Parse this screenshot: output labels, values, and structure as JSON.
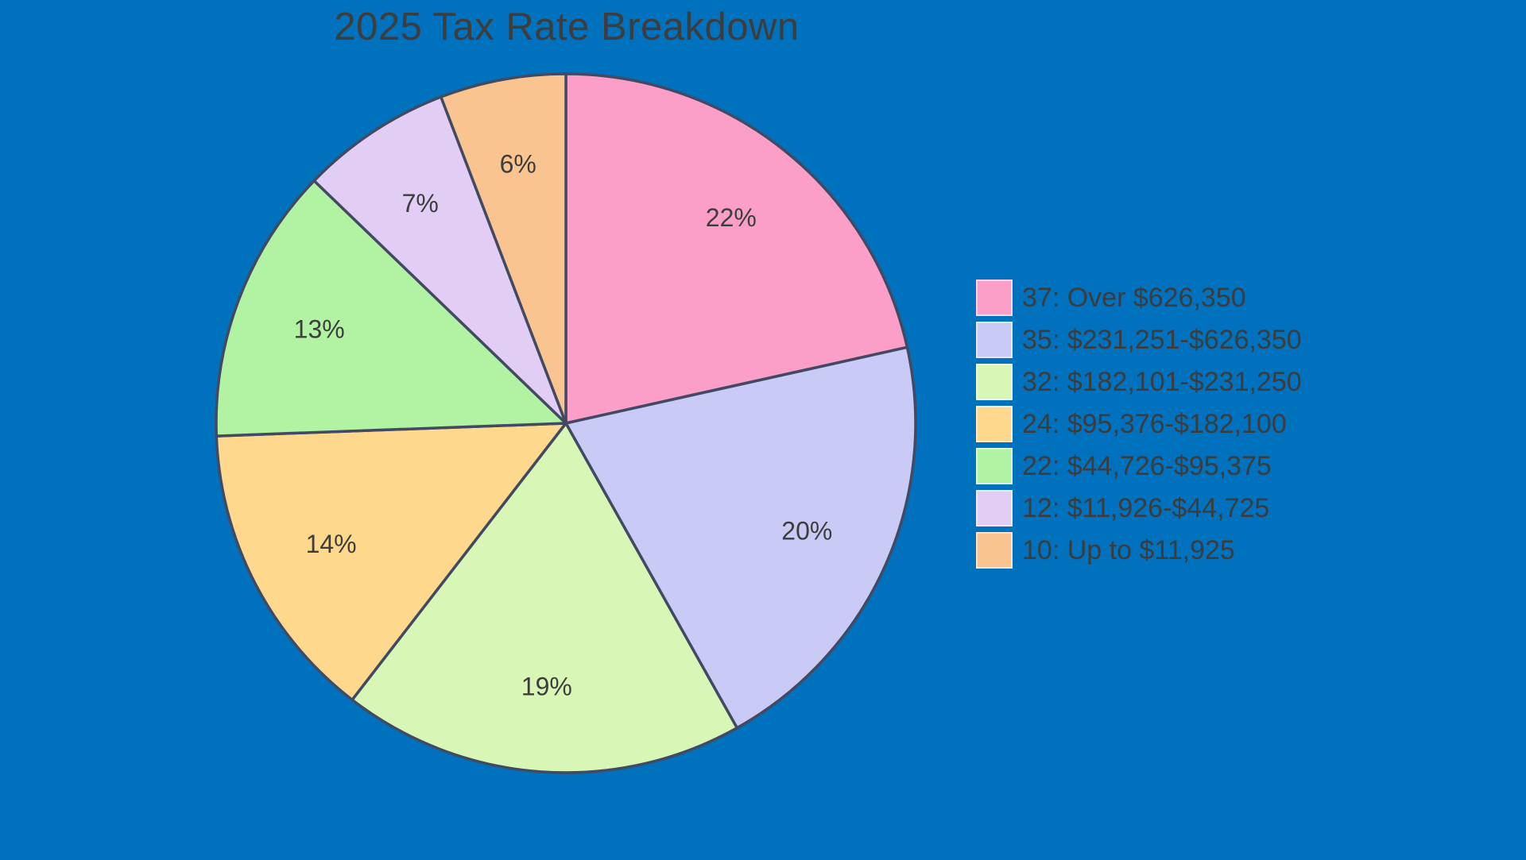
{
  "title": "2025 Tax Rate Breakdown",
  "colors": {
    "background": "#0071BC",
    "slice_stroke": "#424A63",
    "text": "#3D3D3D"
  },
  "chart_data": {
    "type": "pie",
    "title": "2025 Tax Rate Breakdown",
    "start_angle_deg": 0,
    "direction": "clockwise",
    "legend_position": "right",
    "values_note": "slice sizes proportional to tax rate; percent labels are rounded shares of total (sum of rates = 172)",
    "slices": [
      {
        "legend_label": "37: Over $626,350",
        "rate": 37,
        "percent_label": "22%",
        "color": "#FB9EC8"
      },
      {
        "legend_label": "35: $231,251-$626,350",
        "rate": 35,
        "percent_label": "20%",
        "color": "#C9CAF5"
      },
      {
        "legend_label": "32: $182,101-$231,250",
        "rate": 32,
        "percent_label": "19%",
        "color": "#D8F7B7"
      },
      {
        "legend_label": "24: $95,376-$182,100",
        "rate": 24,
        "percent_label": "14%",
        "color": "#FDD88D"
      },
      {
        "legend_label": "22: $44,726-$95,375",
        "rate": 22,
        "percent_label": "13%",
        "color": "#B1F3A3"
      },
      {
        "legend_label": "12: $11,926-$44,725",
        "rate": 12,
        "percent_label": "7%",
        "color": "#E2CDF5"
      },
      {
        "legend_label": "10: Up to $11,925",
        "rate": 10,
        "percent_label": "6%",
        "color": "#F9C48F"
      }
    ]
  }
}
